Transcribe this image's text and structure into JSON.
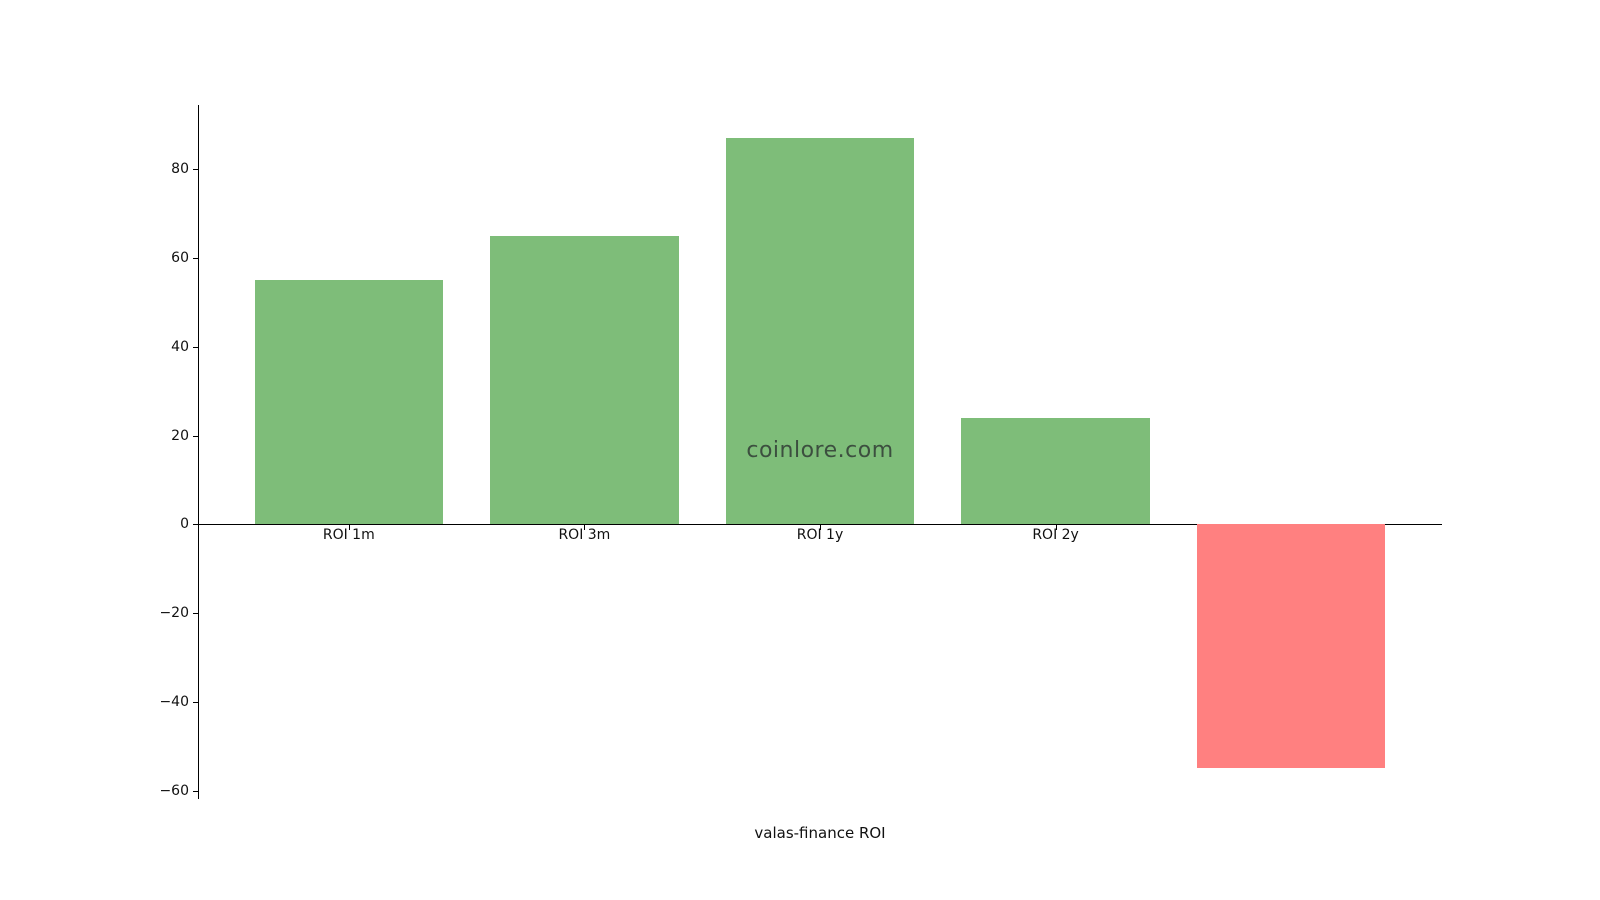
{
  "page": {
    "background": "#ffffff"
  },
  "chart_data": {
    "type": "bar",
    "title": "valas-finance ROI",
    "watermark": "coinlore.com",
    "watermark_color": "#3c4f3f",
    "categories": [
      "ROI 1m",
      "ROI 3m",
      "ROI 1y",
      "ROI 2y",
      ""
    ],
    "values": [
      55,
      65,
      87,
      24,
      -55
    ],
    "positive_color": "#7ebd79",
    "negative_color": "#ff8080",
    "axis_color": "#000000",
    "tick_label_color": "#111111",
    "yticks": [
      80,
      60,
      40,
      20,
      0,
      -20,
      -40,
      -60
    ],
    "ytick_labels": [
      "80",
      "60",
      "40",
      "20",
      "0",
      "−20",
      "−40",
      "−60"
    ],
    "ylim": [
      -61.9,
      94.5
    ],
    "xlim": [
      -0.64,
      4.64
    ],
    "bar_width": 0.8,
    "grid": false,
    "legend": null,
    "xlabel": "",
    "ylabel": ""
  }
}
